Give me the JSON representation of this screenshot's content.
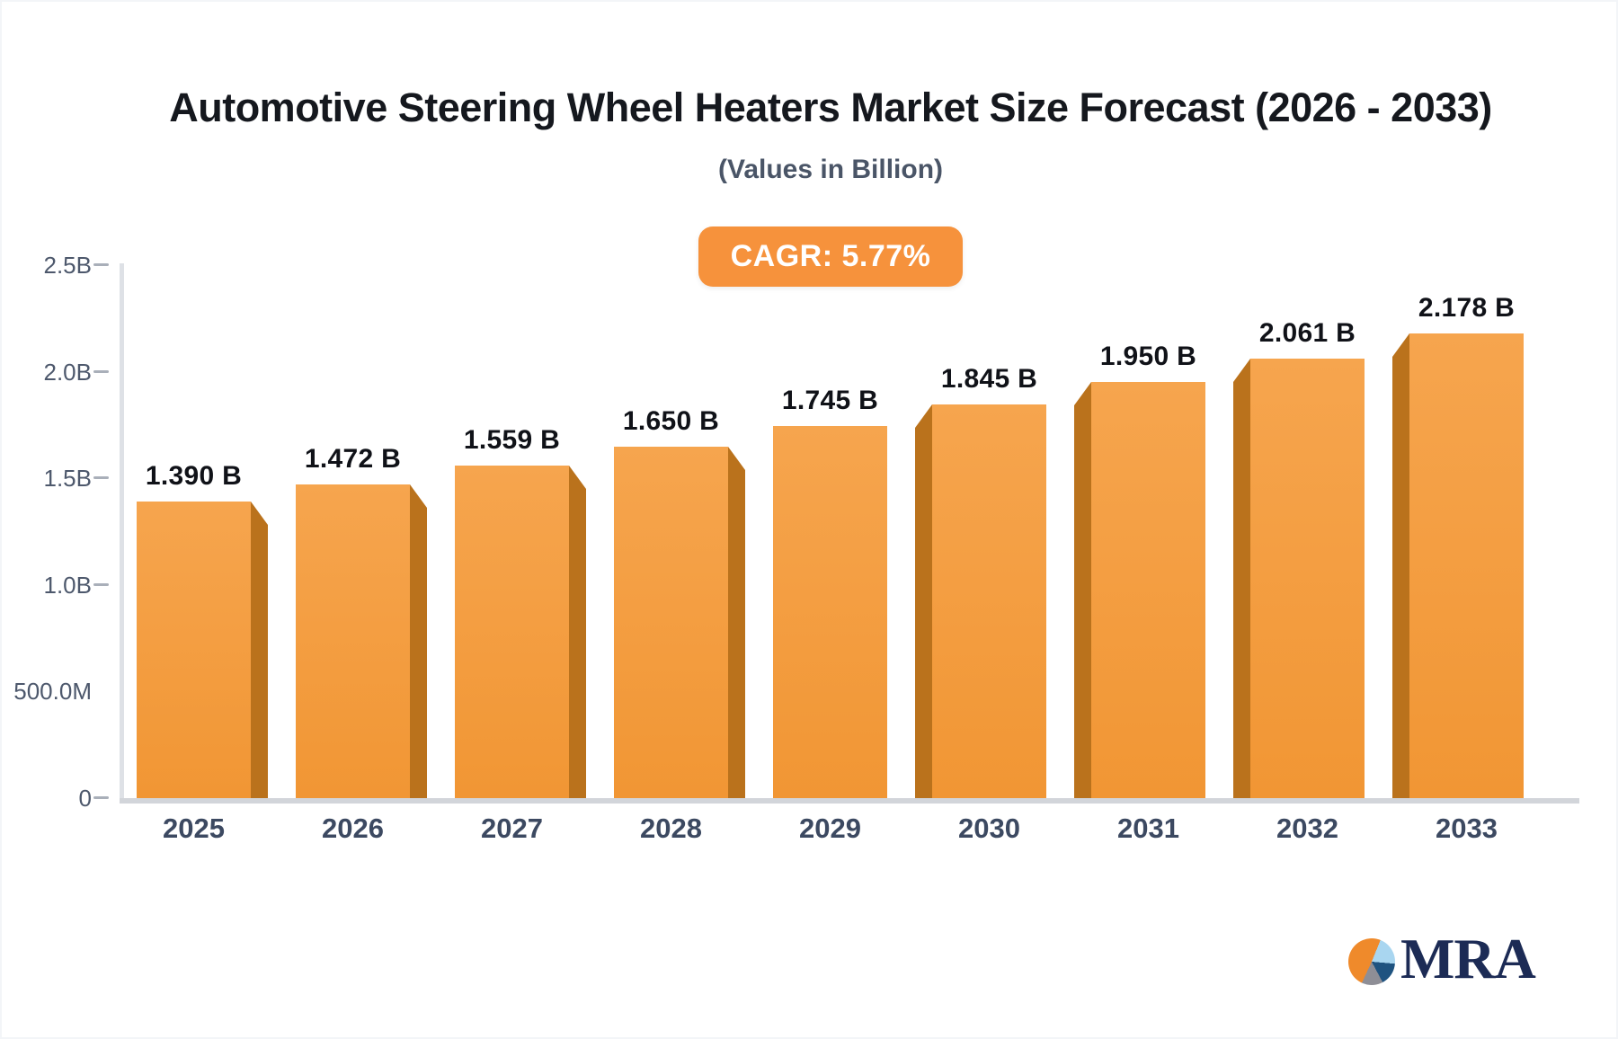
{
  "header": {
    "title": "Automotive Steering Wheel Heaters Market Size Forecast (2026 - 2033)",
    "subtitle": "(Values in Billion)",
    "cagr_badge": "CAGR: 5.77%"
  },
  "branding": {
    "logo_text": "MRA",
    "logo_mark": "pie-chart-icon"
  },
  "chart_data": {
    "type": "bar",
    "title": "Automotive Steering Wheel Heaters Market Size Forecast (2026 - 2033)",
    "subtitle": "(Values in Billion)",
    "annotation": "CAGR: 5.77%",
    "cagr_value_percent": 5.77,
    "unit": "Billion",
    "categories": [
      "2025",
      "2026",
      "2027",
      "2028",
      "2029",
      "2030",
      "2031",
      "2032",
      "2033"
    ],
    "values": [
      1.39,
      1.472,
      1.559,
      1.65,
      1.745,
      1.845,
      1.95,
      2.061,
      2.178
    ],
    "value_labels": [
      "1.390 B",
      "1.472 B",
      "1.559 B",
      "1.650 B",
      "1.745 B",
      "1.845 B",
      "1.950 B",
      "2.061 B",
      "2.178 B"
    ],
    "xlabel": "",
    "ylabel": "",
    "ylim": [
      0,
      2.5
    ],
    "grid": false,
    "legend": null,
    "y_ticks": [
      {
        "label": "2.5B",
        "value": 2.5,
        "tick_mark": true
      },
      {
        "label": "2.0B",
        "value": 2.0,
        "tick_mark": true
      },
      {
        "label": "1.5B",
        "value": 1.5,
        "tick_mark": true
      },
      {
        "label": "1.0B",
        "value": 1.0,
        "tick_mark": true
      },
      {
        "label": "500.0M",
        "value": 0.5,
        "tick_mark": false
      },
      {
        "label": "0",
        "value": 0.0,
        "tick_mark": true
      }
    ],
    "bar_bevels": [
      "right",
      "right",
      "right",
      "right",
      "none",
      "left",
      "left",
      "left",
      "left"
    ],
    "colors": {
      "bar_face_top": "#F6A54E",
      "bar_face_bottom": "#F19634",
      "bar_side": "#BA721C",
      "badge_bg": "#F6923C",
      "badge_text": "#FFFFFF",
      "title_text": "#15181E",
      "subtitle_text": "#4A5567",
      "axis_text": "#4D586C",
      "year_text": "#3C4961",
      "value_text": "#101218",
      "axis_line": "#DEE1E6",
      "baseline": "#D2D5DA",
      "tick_mark": "#A9AFB9",
      "logo_navy": "#1C2B55",
      "logo_orange": "#EF8A2B",
      "logo_lightblue": "#A9D6F0",
      "logo_blue": "#1F5380",
      "logo_gray": "#8E8E96"
    }
  }
}
